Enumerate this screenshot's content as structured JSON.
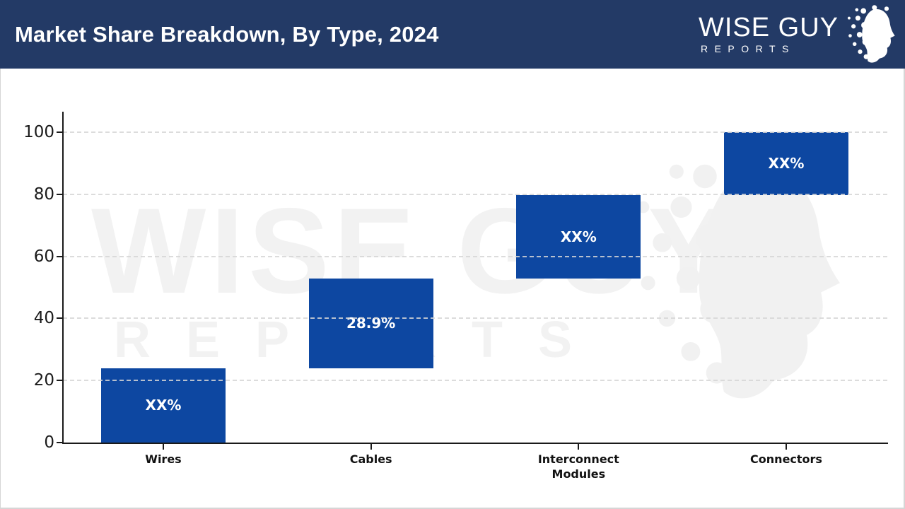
{
  "header": {
    "title": "Market Share Breakdown, By Type, 2024",
    "logo_line1": "WISE GUY",
    "logo_line2": "REPORTS",
    "bg_color": "#233a66"
  },
  "watermark": {
    "line1": "WISE GUY",
    "line2": "REPORTS"
  },
  "chart_data": {
    "type": "bar",
    "subtype": "waterfall",
    "title": "Market Share Breakdown, By Type, 2024",
    "categories": [
      "Wires",
      "Cables",
      "Interconnect Modules",
      "Connectors"
    ],
    "bars": [
      {
        "category": "Wires",
        "start": 0,
        "end": 24,
        "label": "XX%"
      },
      {
        "category": "Cables",
        "start": 24,
        "end": 52.9,
        "label": "28.9%"
      },
      {
        "category": "Interconnect Modules",
        "start": 52.9,
        "end": 79.8,
        "label": "XX%"
      },
      {
        "category": "Connectors",
        "start": 79.8,
        "end": 100,
        "label": "XX%"
      }
    ],
    "y_ticks": [
      0,
      20,
      40,
      60,
      80,
      100
    ],
    "ylim": [
      0,
      107
    ],
    "xlabel": "",
    "ylabel": "",
    "legend": null,
    "grid": "horizontal-dashed",
    "bar_color": "#0d47a1",
    "bar_label_color": "#ffffff",
    "axis_color": "#1a1a1a"
  }
}
